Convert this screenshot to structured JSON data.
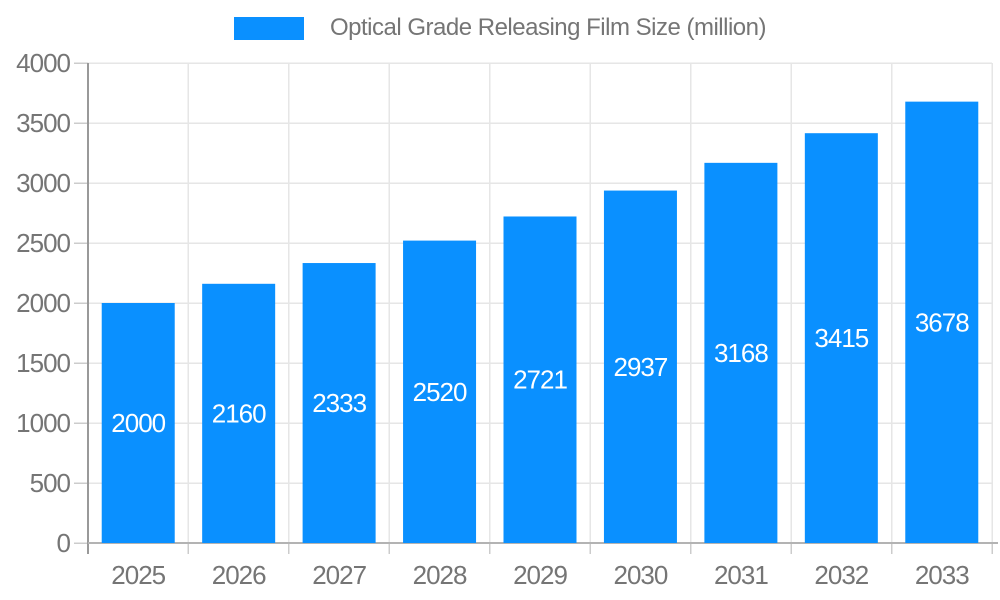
{
  "legend": {
    "label": "Optical Grade Releasing Film Size (million)"
  },
  "chart_data": {
    "type": "bar",
    "title": "Optical Grade Releasing Film Size (million)",
    "categories": [
      "2025",
      "2026",
      "2027",
      "2028",
      "2029",
      "2030",
      "2031",
      "2032",
      "2033"
    ],
    "values": [
      2000,
      2160,
      2333,
      2520,
      2721,
      2937,
      3168,
      3415,
      3678
    ],
    "xlabel": "",
    "ylabel": "",
    "ylim": [
      0,
      4000
    ],
    "ytick_step": 500,
    "grid": true,
    "legend_position": "top-center",
    "bar_label_position": "inside-center"
  },
  "colors": {
    "bar": "#0A90FF",
    "grid": "#e6e6e6",
    "axis_y": "#999999",
    "axis_x": "#b3b3b3",
    "tick": "#cccccc",
    "axis_label": "#757575",
    "bar_label": "#ffffff",
    "background": "#ffffff"
  }
}
